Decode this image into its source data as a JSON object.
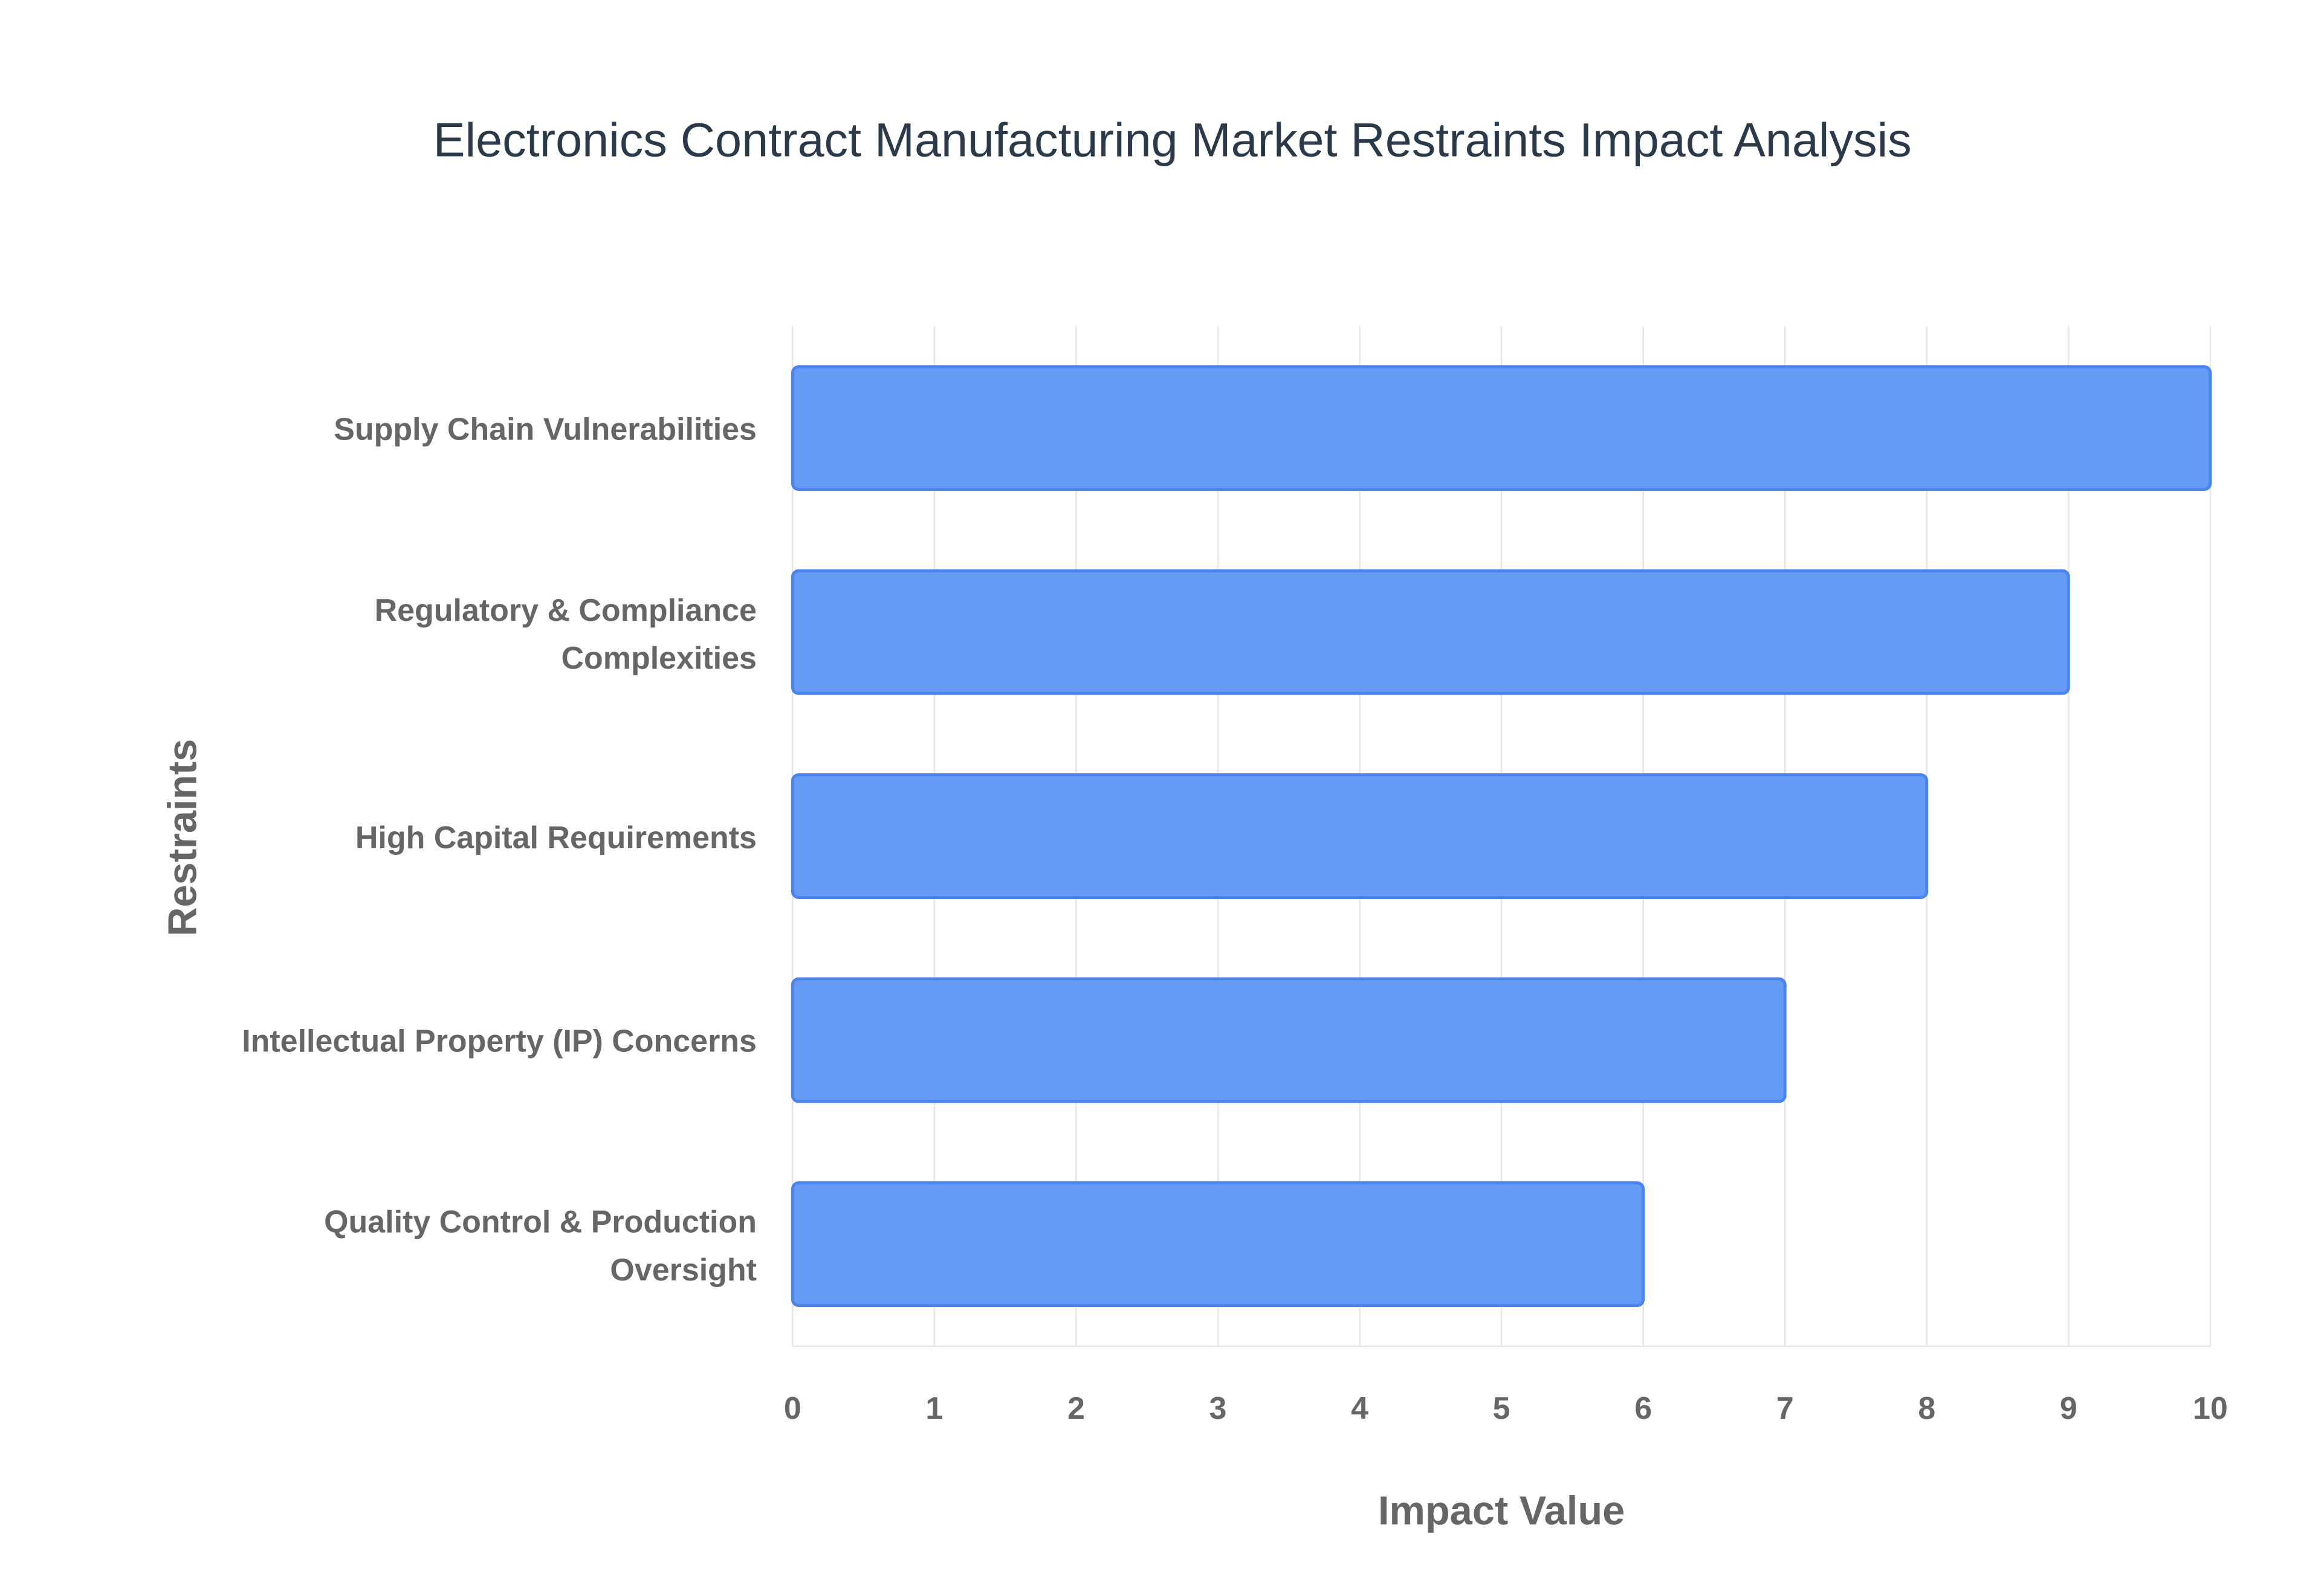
{
  "chart_data": {
    "type": "bar",
    "orientation": "horizontal",
    "title": "Electronics Contract Manufacturing Market Restraints Impact Analysis",
    "x_label": "Impact Value",
    "y_label": "Restraints",
    "categories": [
      "Supply Chain Vulnerabilities",
      "Regulatory & Compliance Complexities",
      "High Capital Requirements",
      "Intellectual Property (IP) Concerns",
      "Quality Control & Production Oversight"
    ],
    "values": [
      10,
      9,
      8,
      7,
      6
    ],
    "color": "#6399f5",
    "xlim": [
      0,
      10
    ],
    "xticks": [
      0,
      1,
      2,
      3,
      4,
      5,
      6,
      7,
      8,
      9,
      10
    ],
    "grid": true
  }
}
